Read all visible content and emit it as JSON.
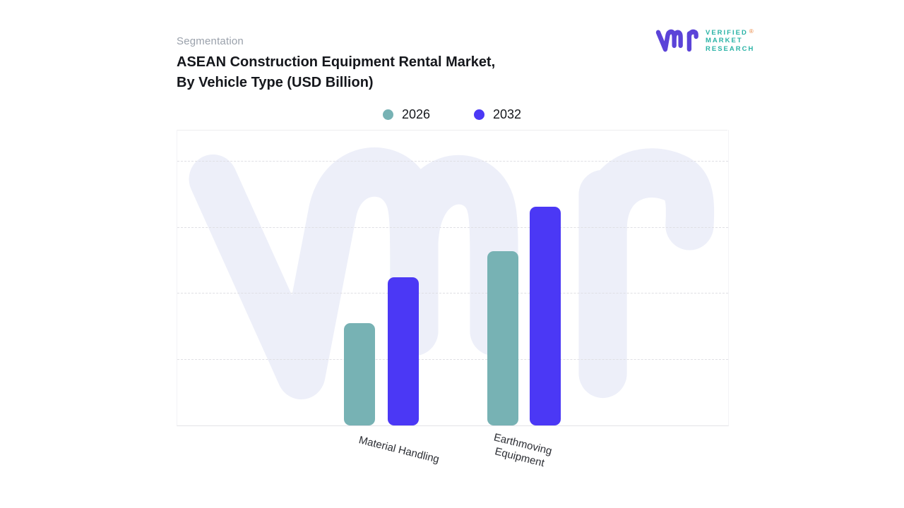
{
  "header": {
    "eyebrow": "Segmentation",
    "title": "ASEAN Construction Equipment Rental Market,\nBy Vehicle Type (USD Billion)"
  },
  "brand": {
    "name_lines": [
      "VERIFIED",
      "MARKET",
      "RESEARCH"
    ],
    "registered_mark": "®",
    "colors": {
      "glyph": "#5b43d8",
      "wordmark": "#2ab3a6",
      "registered": "#e8823a"
    }
  },
  "legend": {
    "items": [
      {
        "label": "2026",
        "color": "#77b2b4"
      },
      {
        "label": "2032",
        "color": "#4b38f5"
      }
    ]
  },
  "chart_data": {
    "type": "bar",
    "title": "ASEAN Construction Equipment Rental Market, By Vehicle Type (USD Billion)",
    "categories": [
      "Material Handling",
      "Earthmoving Equipment"
    ],
    "series": [
      {
        "name": "2026",
        "color": "#77b2b4",
        "values": [
          1.55,
          2.63
        ]
      },
      {
        "name": "2032",
        "color": "#4b38f5",
        "values": [
          2.24,
          3.31
        ]
      }
    ],
    "xlabel": "",
    "ylabel": "",
    "units": "USD Billion",
    "ylim": [
      0,
      4.45
    ],
    "value_axis_tick_labels_visible": false,
    "values_estimated_from_gridlines": true,
    "gridlines": "horizontal-dashed",
    "legend_position": "top-center"
  },
  "watermark": {
    "label": "vmr-watermark",
    "color": "#edeff9"
  }
}
